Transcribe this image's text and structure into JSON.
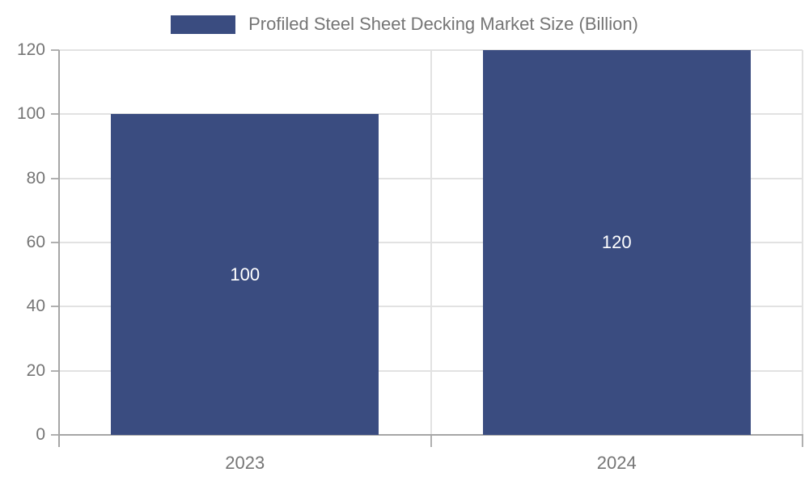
{
  "chart_data": {
    "type": "bar",
    "title": "Profiled Steel Sheet Decking Market Size (Billion)",
    "categories": [
      "2023",
      "2024"
    ],
    "values": [
      100,
      120
    ],
    "xlabel": "",
    "ylabel": "",
    "ylim": [
      0,
      120
    ],
    "yticks": [
      0,
      20,
      40,
      60,
      80,
      100,
      120
    ],
    "grid": true,
    "legend_position": "top",
    "colors": {
      "bar": "#3a4c80",
      "axis_line": "#a6a6a6",
      "gridline": "#e2e2e2",
      "tick_mark": "#b0b0b0",
      "tick_text": "#757575",
      "value_label": "#ffffff",
      "background": "#ffffff"
    }
  }
}
